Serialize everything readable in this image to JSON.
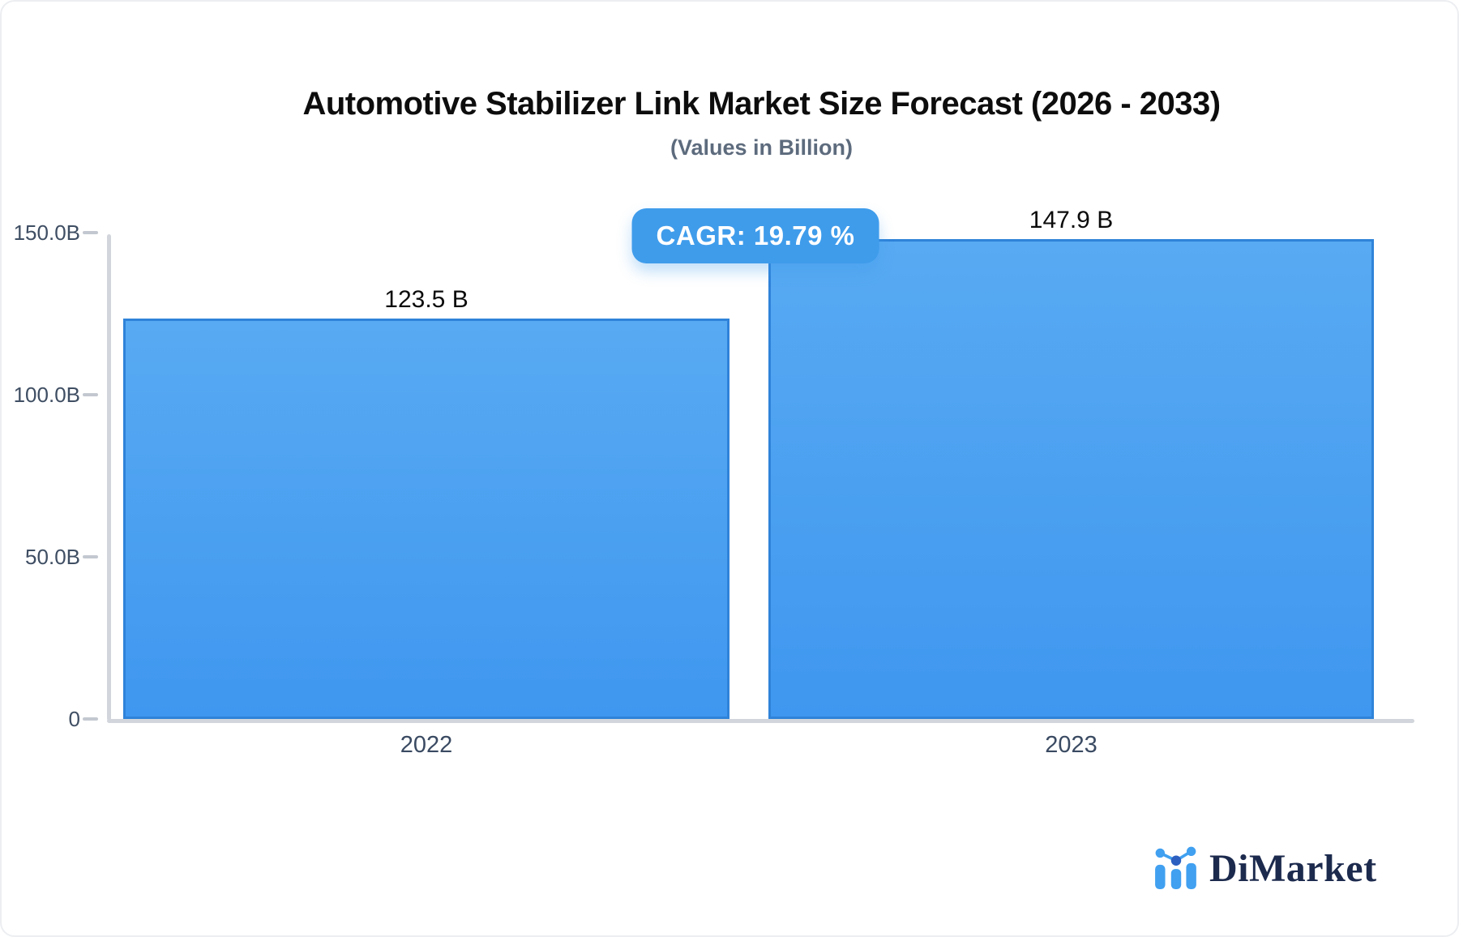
{
  "page": {
    "title": "Automotive Stabilizer Link Market Size Forecast (2026 - 2033)",
    "subtitle": "(Values in Billion)"
  },
  "badge": {
    "text": "CAGR: 19.79 %"
  },
  "brand": {
    "name": "DiMarket",
    "icon": "bar-line-chart-icon"
  },
  "colors": {
    "bar_fill_top": "#58aaf2",
    "bar_fill_bottom": "#3f97ef",
    "bar_border": "#2f83d9",
    "badge_bg": "#3f9ceb",
    "axis_line": "#d2d6dc",
    "tick_mark": "#c3c8d0",
    "axis_label": "#3f4e63",
    "brand_navy": "#1c2a4d",
    "brand_blue": "#41a0f0"
  },
  "chart_data": {
    "type": "bar",
    "title": "Automotive Stabilizer Link Market Size Forecast (2026 - 2033)",
    "subtitle": "(Values in Billion)",
    "categories": [
      "2022",
      "2023"
    ],
    "values": [
      123.5,
      147.9
    ],
    "value_labels": [
      "123.5 B",
      "147.9 B"
    ],
    "unit": "Billion",
    "cagr_percent": 19.79,
    "ylim": [
      0,
      150
    ],
    "yticks": [
      {
        "label": "150.0B",
        "value": 150
      },
      {
        "label": "100.0B",
        "value": 100
      },
      {
        "label": "50.0B",
        "value": 50
      },
      {
        "label": "0",
        "value": 0
      }
    ],
    "grid": false,
    "legend": false
  }
}
